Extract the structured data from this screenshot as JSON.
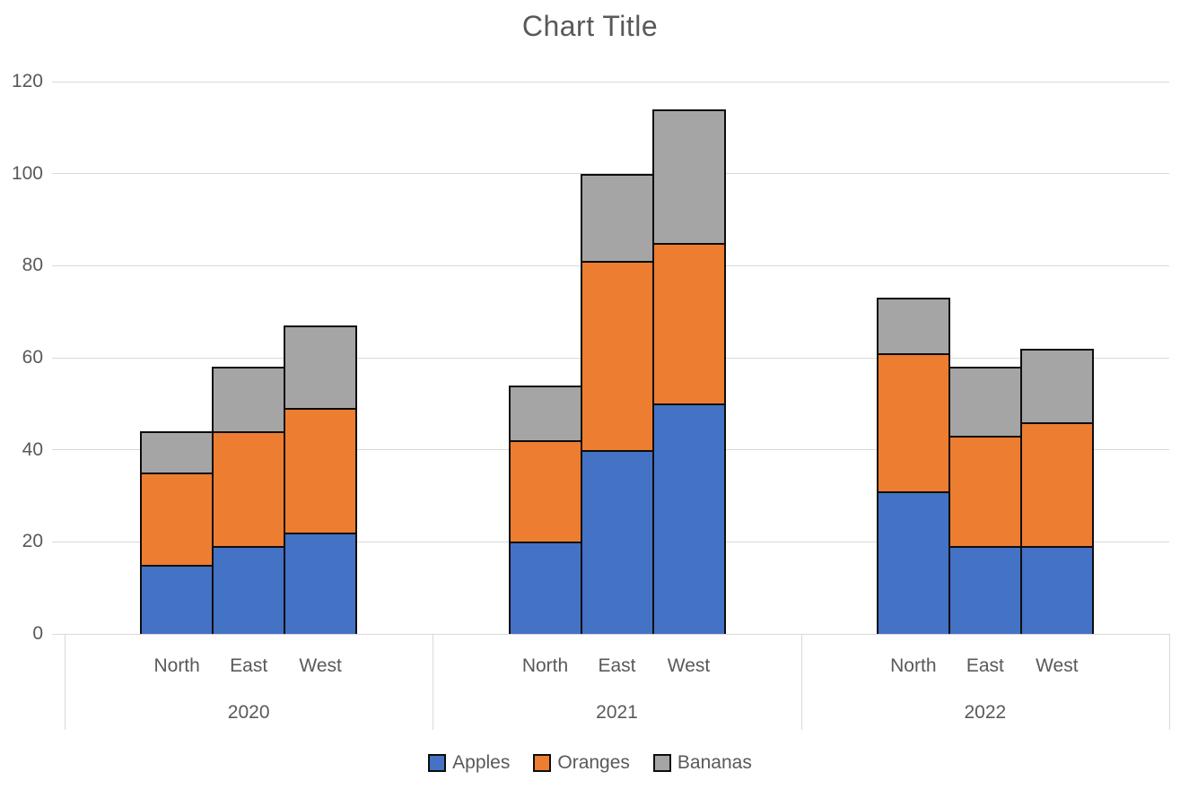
{
  "chart_data": {
    "type": "bar",
    "variant": "stacked-column",
    "title": "Chart Title",
    "group_labels": [
      "2020",
      "2021",
      "2022"
    ],
    "categories": [
      "North",
      "East",
      "West"
    ],
    "series": [
      {
        "name": "Apples",
        "color": "#4472C4",
        "values": [
          [
            15,
            19,
            22
          ],
          [
            20,
            40,
            50
          ],
          [
            31,
            19,
            19
          ]
        ]
      },
      {
        "name": "Oranges",
        "color": "#ED7D31",
        "values": [
          [
            20,
            25,
            27
          ],
          [
            22,
            41,
            35
          ],
          [
            30,
            24,
            27
          ]
        ]
      },
      {
        "name": "Bananas",
        "color": "#A5A5A5",
        "values": [
          [
            9,
            14,
            18
          ],
          [
            12,
            19,
            29
          ],
          [
            12,
            15,
            16
          ]
        ]
      }
    ],
    "stacked_totals": [
      [
        44,
        58,
        67
      ],
      [
        54,
        100,
        114
      ],
      [
        73,
        58,
        62
      ]
    ],
    "y_axis": {
      "min": 0,
      "max": 120,
      "step": 20,
      "tick_labels": [
        "0",
        "20",
        "40",
        "60",
        "80",
        "100",
        "120"
      ]
    },
    "legend_position": "bottom",
    "grid": true,
    "colors": {
      "text": "#595959",
      "gridline": "#d9d9d9",
      "bar_border": "#0d0d0d",
      "axis_line": "#d9d9d9"
    }
  }
}
